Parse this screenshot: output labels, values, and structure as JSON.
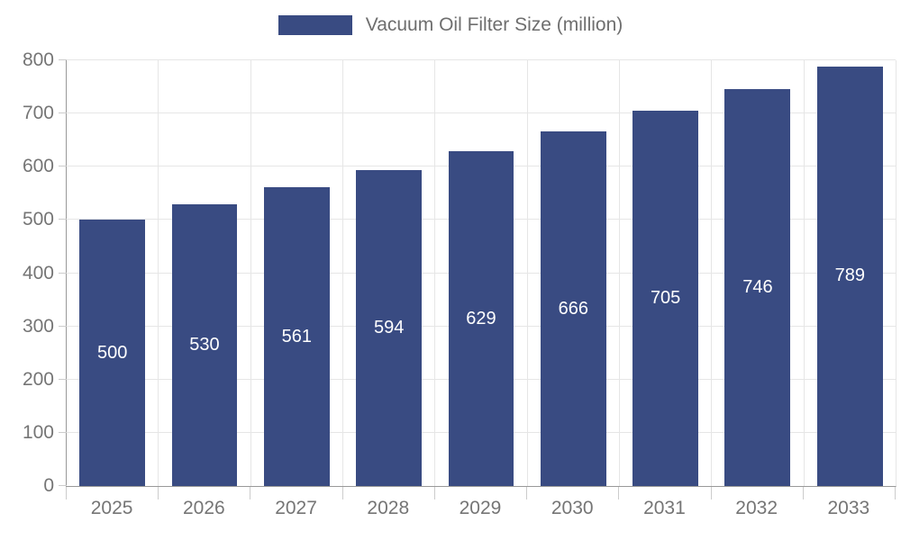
{
  "chart_data": {
    "type": "bar",
    "title": "",
    "legend_label": "Vacuum Oil Filter Size (million)",
    "legend_position": "top",
    "categories": [
      "2025",
      "2026",
      "2027",
      "2028",
      "2029",
      "2030",
      "2031",
      "2032",
      "2033"
    ],
    "series": [
      {
        "name": "Vacuum Oil Filter Size (million)",
        "values": [
          500,
          530,
          561,
          594,
          629,
          666,
          705,
          746,
          789
        ]
      }
    ],
    "values": [
      500,
      530,
      561,
      594,
      629,
      666,
      705,
      746,
      789
    ],
    "value_labels_inside_bars": true,
    "xlabel": "",
    "ylabel": "",
    "ylim": [
      0,
      800
    ],
    "yticks": [
      0,
      100,
      200,
      300,
      400,
      500,
      600,
      700,
      800
    ],
    "grid": true,
    "colors": {
      "bar": "#394b82",
      "grid": "#e6e6e6",
      "axis": "#999999",
      "tick": "#cccccc",
      "label": "#757575",
      "value_label": "#ffffff",
      "background": "#ffffff"
    }
  }
}
